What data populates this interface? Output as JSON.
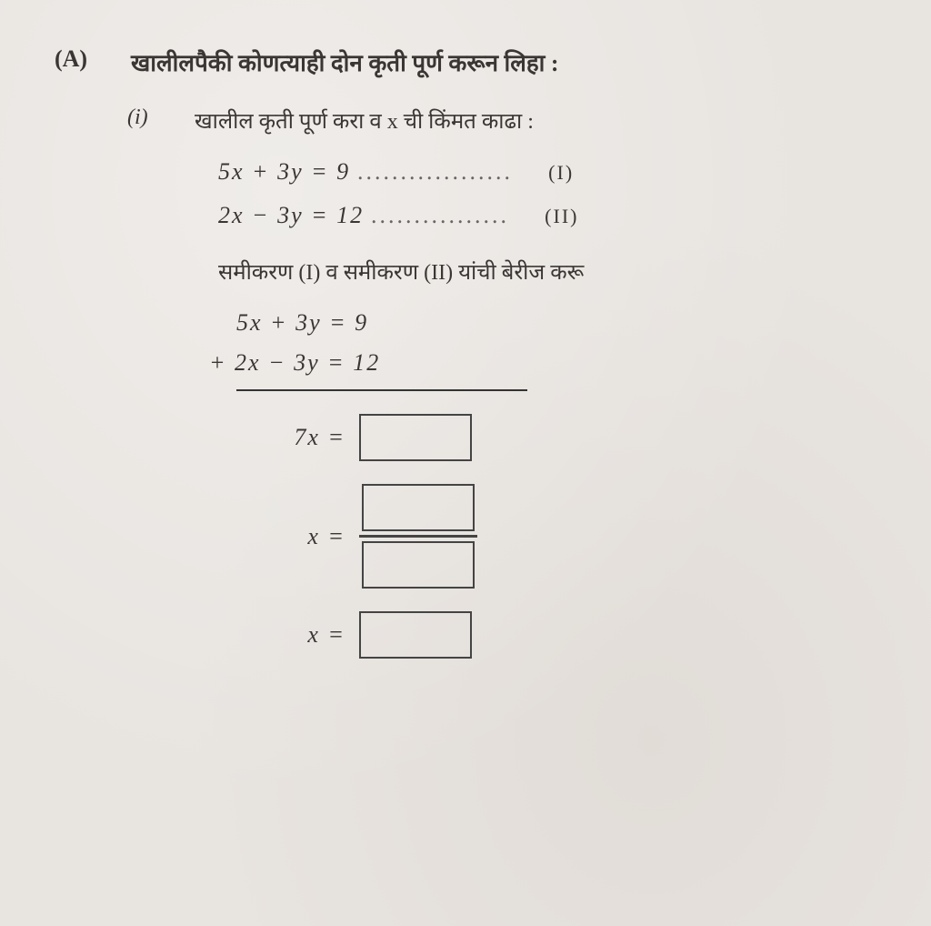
{
  "question": {
    "label": "(A)",
    "heading": "खालीलपैकी कोणत्याही दोन कृती पूर्ण करून लिहा :"
  },
  "subquestion": {
    "label": "(i)",
    "text": "खालील कृती पूर्ण करा व x ची किंमत काढा :"
  },
  "equations": {
    "eq1": "5x + 3y = 9",
    "eq1_dots": "..................",
    "eq1_label": "(I)",
    "eq2": "2x − 3y = 12",
    "eq2_dots": "................",
    "eq2_label": "(II)"
  },
  "instruction": "समीकरण (I) व समीकरण (II) यांची बेरीज करू",
  "addition": {
    "line1": "5x + 3y = 9",
    "line2": "+ 2x − 3y = 12",
    "result1_var": "7x =",
    "result2_var": "x =",
    "result3_var": "x ="
  },
  "colors": {
    "background": "#e8e4e0",
    "text": "#3a3634",
    "box_border": "#444444"
  },
  "fonts": {
    "body_size": 26,
    "label_size": 24
  }
}
